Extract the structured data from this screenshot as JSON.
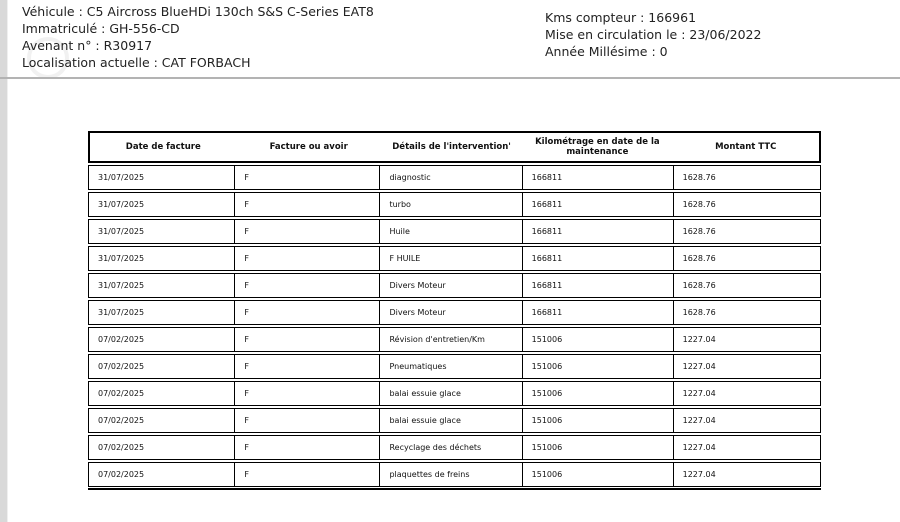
{
  "vehicle_header": {
    "left_lines": [
      "Véhicule : C5 Aircross BlueHDi 130ch S&S C-Series EAT8",
      "Immatriculé : GH-556-CD",
      "Avenant n° : R30917",
      "Localisation actuelle : CAT FORBACH"
    ],
    "right_lines": [
      "Kms compteur : 166961",
      "Mise en circulation le : 23/06/2022",
      "Année Millésime : 0"
    ]
  },
  "table": {
    "columns": [
      "Date de facture",
      "Facture ou avoir",
      "Détails de l'intervention'",
      "Kilométrage en date de la maintenance",
      "Montant TTC"
    ],
    "rows": [
      [
        "31/07/2025",
        "F",
        "diagnostic",
        "166811",
        "1628.76"
      ],
      [
        "31/07/2025",
        "F",
        "turbo",
        "166811",
        "1628.76"
      ],
      [
        "31/07/2025",
        "F",
        "Huile",
        "166811",
        "1628.76"
      ],
      [
        "31/07/2025",
        "F",
        "F HUILE",
        "166811",
        "1628.76"
      ],
      [
        "31/07/2025",
        "F",
        "Divers Moteur",
        "166811",
        "1628.76"
      ],
      [
        "31/07/2025",
        "F",
        "Divers Moteur",
        "166811",
        "1628.76"
      ],
      [
        "07/02/2025",
        "F",
        "Révision d'entretien/Km",
        "151006",
        "1227.04"
      ],
      [
        "07/02/2025",
        "F",
        "Pneumatiques",
        "151006",
        "1227.04"
      ],
      [
        "07/02/2025",
        "F",
        "balai essuie glace",
        "151006",
        "1227.04"
      ],
      [
        "07/02/2025",
        "F",
        "balai essuie glace",
        "151006",
        "1227.04"
      ],
      [
        "07/02/2025",
        "F",
        "Recyclage des déchets",
        "151006",
        "1227.04"
      ],
      [
        "07/02/2025",
        "F",
        "plaquettes de freins",
        "151006",
        "1227.04"
      ]
    ]
  },
  "colors": {
    "divider_gray": "#b3b3b3",
    "edge_strip_gray": "#d9d9d9",
    "table_border": "#000000"
  }
}
